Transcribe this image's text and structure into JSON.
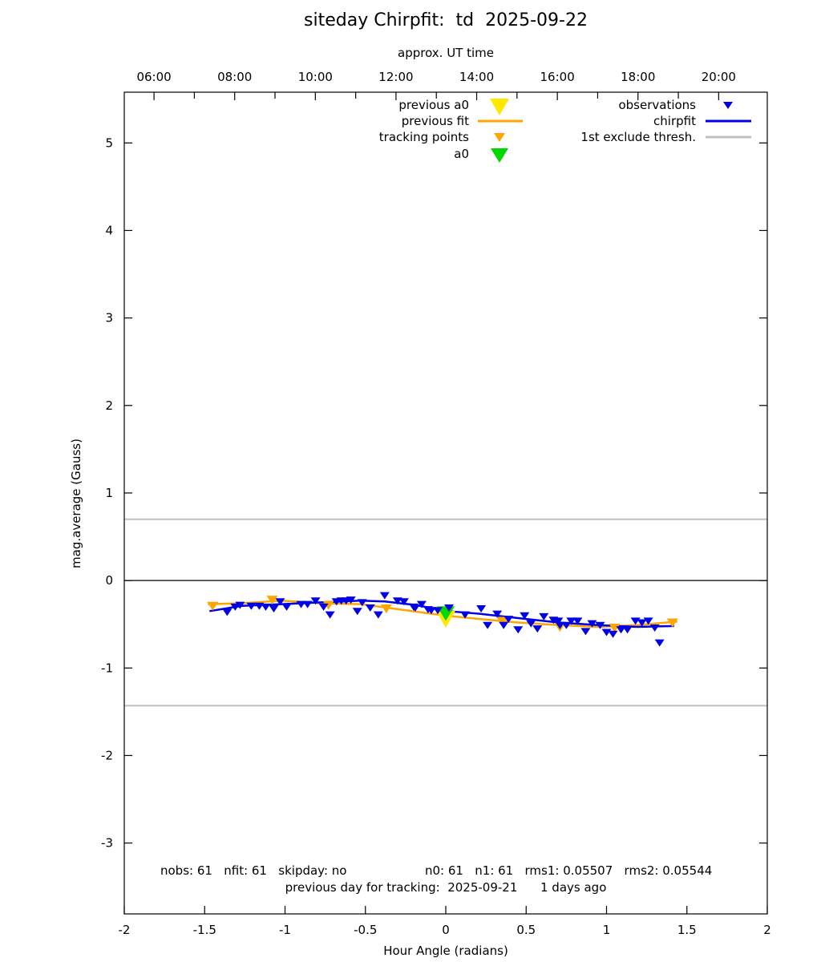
{
  "title": "siteday Chirpfit:  td  2025-09-22",
  "stats": {
    "line1_left": "nobs: 61   nfit: 61   skipday: no",
    "line1_right": "n0: 61   n1: 61   rms1: 0.05507   rms2: 0.05544",
    "line2": "previous day for tracking:  2025-09-21      1 days ago",
    "nobs": 61,
    "nfit": 61,
    "skipday": "no",
    "n0": 61,
    "n1": 61,
    "rms1": 0.05507,
    "rms2": 0.05544,
    "previous_day": "2025-09-21",
    "days_ago": "1 days ago"
  },
  "legend": {
    "left": [
      {
        "label": "previous a0",
        "type": "marker",
        "marker": "triangle-down",
        "size": "xlarge",
        "color": "#ffe800"
      },
      {
        "label": "previous fit",
        "type": "line",
        "color": "#ffa500"
      },
      {
        "label": "tracking points",
        "type": "marker",
        "marker": "triangle-down",
        "size": "medium",
        "color": "#ffa500"
      },
      {
        "label": "a0",
        "type": "marker",
        "marker": "triangle-down",
        "size": "large",
        "color": "#00d800"
      }
    ],
    "right": [
      {
        "label": "observations",
        "type": "marker",
        "marker": "triangle-down",
        "size": "small",
        "color": "#0000e6"
      },
      {
        "label": "chirpfit",
        "type": "line",
        "color": "#0000e6"
      },
      {
        "label": "1st exclude thresh.",
        "type": "line",
        "color": "#c0c0c0"
      }
    ]
  },
  "chart_data": {
    "type": "scatter",
    "title": "siteday Chirpfit:  td  2025-09-22",
    "xlabel": "Hour Angle (radians)",
    "ylabel": "mag.average (Gauss)",
    "x2label": "approx. UT time",
    "xlim": [
      -2,
      2
    ],
    "ylim": [
      -3.81,
      5.58
    ],
    "grid": false,
    "zero_line_y": 0,
    "x_ticks": {
      "values": [
        -2,
        -1.5,
        -1,
        -0.5,
        0,
        0.5,
        1,
        1.5,
        2
      ],
      "labels": [
        "-2",
        "-1.5",
        "-1",
        "-0.5",
        "0",
        "0.5",
        "1",
        "1.5",
        "2"
      ]
    },
    "y_ticks": {
      "values": [
        5,
        4,
        3,
        2,
        1,
        0,
        -1,
        -2,
        -3
      ],
      "labels": [
        "5",
        "4",
        "3",
        "2",
        "1",
        "0",
        "-1",
        "-2",
        "-3"
      ]
    },
    "x2_ticks": {
      "labels": [
        "06:00",
        "08:00",
        "10:00",
        "12:00",
        "14:00",
        "16:00",
        "18:00",
        "20:00"
      ],
      "start_ha": -1.815,
      "step_ha": 0.2509,
      "minor_count": 15
    },
    "series": [
      {
        "name": "1st exclude thresh.",
        "type": "hlines",
        "color": "#c0c0c0",
        "values": [
          0.7,
          -1.43
        ]
      },
      {
        "name": "previous fit",
        "type": "line",
        "color": "#ffa500",
        "points": [
          [
            -1.48,
            -0.27
          ],
          [
            -1.27,
            -0.26
          ],
          [
            -1.02,
            -0.23
          ],
          [
            -0.78,
            -0.26
          ],
          [
            -0.53,
            -0.27
          ],
          [
            -0.29,
            -0.33
          ],
          [
            -0.01,
            -0.4
          ],
          [
            0.21,
            -0.44
          ],
          [
            0.45,
            -0.48
          ],
          [
            0.7,
            -0.51
          ],
          [
            0.95,
            -0.53
          ],
          [
            1.19,
            -0.51
          ],
          [
            1.44,
            -0.47
          ]
        ]
      },
      {
        "name": "chirpfit",
        "type": "line",
        "color": "#0000e6",
        "points": [
          [
            -1.47,
            -0.35
          ],
          [
            -1.27,
            -0.29
          ],
          [
            -1.02,
            -0.27
          ],
          [
            -0.78,
            -0.25
          ],
          [
            -0.53,
            -0.23
          ],
          [
            -0.38,
            -0.24
          ],
          [
            -0.19,
            -0.28
          ],
          [
            0.01,
            -0.35
          ],
          [
            0.21,
            -0.38
          ],
          [
            0.45,
            -0.43
          ],
          [
            0.7,
            -0.48
          ],
          [
            0.95,
            -0.51
          ],
          [
            1.19,
            -0.53
          ],
          [
            1.42,
            -0.52
          ]
        ]
      },
      {
        "name": "tracking points",
        "type": "scatter",
        "marker": "triangle-down",
        "size": "medium",
        "color": "#ffa500",
        "points": [
          [
            -1.45,
            -0.29
          ],
          [
            -1.08,
            -0.22
          ],
          [
            -0.73,
            -0.28
          ],
          [
            -0.37,
            -0.32
          ],
          [
            0.35,
            -0.46
          ],
          [
            0.71,
            -0.53
          ],
          [
            1.05,
            -0.54
          ],
          [
            1.41,
            -0.48
          ]
        ]
      },
      {
        "name": "previous a0",
        "type": "scatter",
        "marker": "triangle-down",
        "size": "xlarge",
        "color": "#ffe800",
        "points": [
          [
            0.0,
            -0.42
          ]
        ]
      },
      {
        "name": "a0",
        "type": "scatter",
        "marker": "triangle-down",
        "size": "large",
        "color": "#00d800",
        "points": [
          [
            0.0,
            -0.36
          ]
        ]
      },
      {
        "name": "observations",
        "type": "scatter",
        "marker": "triangle-down",
        "size": "small",
        "color": "#0000e6",
        "points": [
          [
            -1.36,
            -0.36
          ],
          [
            -1.31,
            -0.3
          ],
          [
            -1.28,
            -0.28
          ],
          [
            -1.21,
            -0.29
          ],
          [
            -1.16,
            -0.29
          ],
          [
            -1.12,
            -0.3
          ],
          [
            -1.07,
            -0.32
          ],
          [
            -1.03,
            -0.24
          ],
          [
            -0.99,
            -0.3
          ],
          [
            -0.9,
            -0.27
          ],
          [
            -0.86,
            -0.27
          ],
          [
            -0.81,
            -0.23
          ],
          [
            -0.76,
            -0.3
          ],
          [
            -0.72,
            -0.39
          ],
          [
            -0.68,
            -0.24
          ],
          [
            -0.65,
            -0.23
          ],
          [
            -0.62,
            -0.23
          ],
          [
            -0.59,
            -0.22
          ],
          [
            -0.55,
            -0.35
          ],
          [
            -0.52,
            -0.25
          ],
          [
            -0.47,
            -0.31
          ],
          [
            -0.42,
            -0.39
          ],
          [
            -0.38,
            -0.17
          ],
          [
            -0.3,
            -0.23
          ],
          [
            -0.26,
            -0.24
          ],
          [
            -0.2,
            -0.3
          ],
          [
            -0.19,
            -0.31
          ],
          [
            -0.15,
            -0.27
          ],
          [
            -0.11,
            -0.33
          ],
          [
            -0.09,
            -0.34
          ],
          [
            -0.05,
            -0.34
          ],
          [
            0.02,
            -0.31
          ],
          [
            0.12,
            -0.39
          ],
          [
            0.22,
            -0.32
          ],
          [
            0.26,
            -0.51
          ],
          [
            0.32,
            -0.38
          ],
          [
            0.36,
            -0.51
          ],
          [
            0.39,
            -0.44
          ],
          [
            0.45,
            -0.56
          ],
          [
            0.49,
            -0.4
          ],
          [
            0.53,
            -0.49
          ],
          [
            0.57,
            -0.55
          ],
          [
            0.61,
            -0.41
          ],
          [
            0.67,
            -0.45
          ],
          [
            0.7,
            -0.46
          ],
          [
            0.71,
            -0.51
          ],
          [
            0.75,
            -0.51
          ],
          [
            0.78,
            -0.46
          ],
          [
            0.82,
            -0.46
          ],
          [
            0.87,
            -0.58
          ],
          [
            0.91,
            -0.49
          ],
          [
            0.96,
            -0.51
          ],
          [
            1.0,
            -0.59
          ],
          [
            1.04,
            -0.61
          ],
          [
            1.09,
            -0.56
          ],
          [
            1.13,
            -0.56
          ],
          [
            1.18,
            -0.46
          ],
          [
            1.22,
            -0.48
          ],
          [
            1.26,
            -0.46
          ],
          [
            1.3,
            -0.54
          ],
          [
            1.33,
            -0.71
          ]
        ]
      }
    ]
  },
  "colors": {
    "frame": "#000000",
    "threshold": "#c0c0c0",
    "observations": "#0000e6",
    "chirpfit": "#0000e6",
    "previous_fit": "#ffa500",
    "tracking": "#ffa500",
    "previous_a0": "#ffe800",
    "a0": "#00d800"
  }
}
